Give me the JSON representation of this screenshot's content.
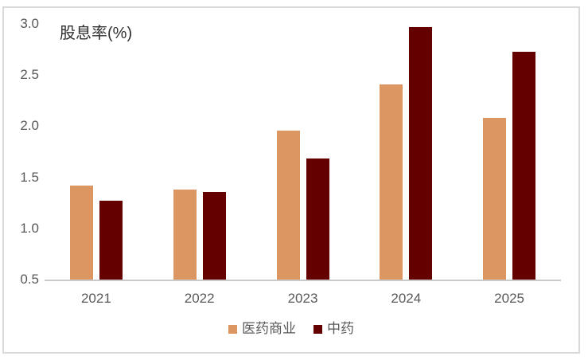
{
  "chart_data": {
    "type": "bar",
    "title": "股息率(%)",
    "categories": [
      "2021",
      "2022",
      "2023",
      "2024",
      "2025"
    ],
    "series": [
      {
        "name": "医药商业",
        "color": "#DB9661",
        "values": [
          1.42,
          1.38,
          1.96,
          2.41,
          2.08
        ]
      },
      {
        "name": "中药",
        "color": "#650000",
        "values": [
          1.27,
          1.36,
          1.68,
          2.97,
          2.73
        ]
      }
    ],
    "xlabel": "",
    "ylabel": "",
    "ylim": [
      0.5,
      3.0
    ],
    "y_ticks": [
      "3.0",
      "2.5",
      "2.0",
      "1.5",
      "1.0",
      "0.5"
    ],
    "grid": "off",
    "legend_position": "bottom-center",
    "axis_baseline_value": 0.5,
    "colors": {
      "card_border": "#d9d9d9",
      "axis_line": "#c9c9c9",
      "tick_text": "#595959",
      "title_text": "#2e2e2e",
      "background": "#ffffff"
    }
  }
}
